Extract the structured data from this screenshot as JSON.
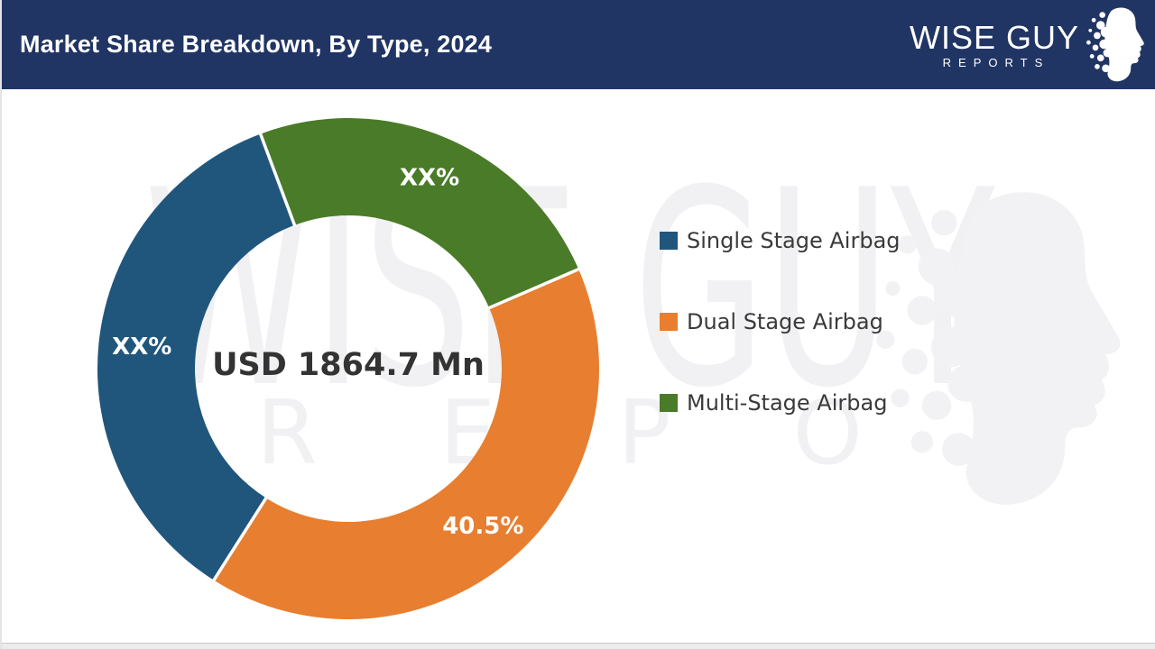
{
  "header": {
    "title": "Market Share Breakdown, By Type, 2024",
    "logo": {
      "line1": "WISE GUY",
      "line2": "REPORTS"
    }
  },
  "colors": {
    "header_bg": "#213564",
    "single_stage_blue": "#20567C",
    "dual_stage_orange": "#E87E2F",
    "multi_stage_green": "#4A7B28",
    "center_text": "#333333",
    "legend_text": "#3A3A3A",
    "watermark": "#F1F1F3"
  },
  "watermark": {
    "line1": "WISE GUY",
    "line2": "R E P O R T S"
  },
  "chart_data": {
    "type": "pie",
    "donut": true,
    "title": "Market Share Breakdown, By Type, 2024",
    "center_label": "USD 1864.7 Mn",
    "start_angle_deg": 110.5,
    "direction": "clockwise",
    "legend_position": "right",
    "segments": [
      {
        "name": "Multi-Stage Airbag",
        "display_label": "XX%",
        "value_pct": 24.2,
        "color": "#4A7B28"
      },
      {
        "name": "Dual Stage Airbag",
        "display_label": "40.5%",
        "value_pct": 40.5,
        "color": "#E87E2F"
      },
      {
        "name": "Single Stage Airbag",
        "display_label": "XX%",
        "value_pct": 35.3,
        "color": "#20567C"
      }
    ],
    "legend": [
      {
        "label": "Single Stage Airbag",
        "color": "#20567C"
      },
      {
        "label": "Dual Stage Airbag",
        "color": "#E87E2F"
      },
      {
        "label": "Multi-Stage Airbag",
        "color": "#4A7B28"
      }
    ]
  }
}
